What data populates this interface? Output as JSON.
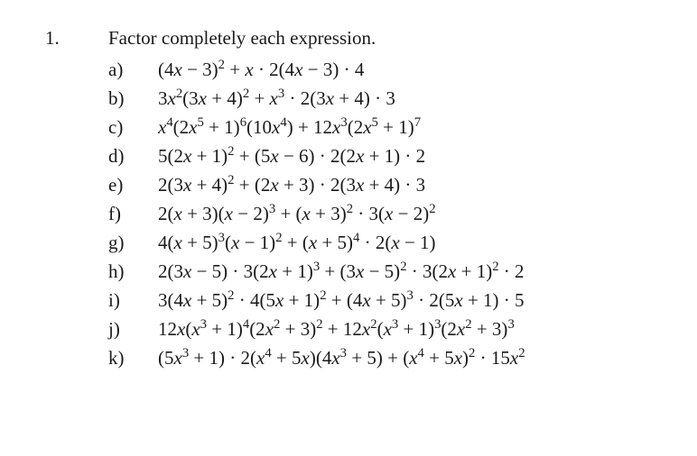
{
  "problem_number": "1.",
  "prompt": "Factor completely each expression.",
  "font_family": "Times New Roman",
  "font_size_pt": 16,
  "text_color": "#1a1a1a",
  "background_color": "#ffffff",
  "items": [
    {
      "label": "a)",
      "expr": "(4x − 3)² + x · 2(4x − 3) · 4"
    },
    {
      "label": "b)",
      "expr": "3x²(3x + 4)² + x³ · 2(3x + 4) · 3"
    },
    {
      "label": "c)",
      "expr": "x⁴(2x⁵ + 1)⁶(10x⁴) + 12x³(2x⁵ + 1)⁷"
    },
    {
      "label": "d)",
      "expr": "5(2x + 1)² + (5x − 6) · 2(2x + 1) · 2"
    },
    {
      "label": "e)",
      "expr": "2(3x + 4)² + (2x + 3) · 2(3x + 4) · 3"
    },
    {
      "label": "f)",
      "expr": "2(x + 3)(x − 2)³ + (x + 3)² · 3(x − 2)²"
    },
    {
      "label": "g)",
      "expr": "4(x + 5)³(x − 1)² + (x + 5)⁴ · 2(x − 1)"
    },
    {
      "label": "h)",
      "expr": "2(3x − 5) · 3(2x + 1)³ + (3x − 5)² · 3(2x + 1)² · 2"
    },
    {
      "label": "i)",
      "expr": "3(4x + 5)² · 4(5x + 1)² + (4x + 5)³ · 2(5x + 1) · 5"
    },
    {
      "label": "j)",
      "expr": "12x(x³ + 1)⁴(2x² + 3)² + 12x²(x³ + 1)³(2x² + 3)³"
    },
    {
      "label": "k)",
      "expr": "(5x³ + 1) · 2(x⁴ + 5x)(4x³ + 5) + (x⁴ + 5x)² · 15x²"
    }
  ]
}
